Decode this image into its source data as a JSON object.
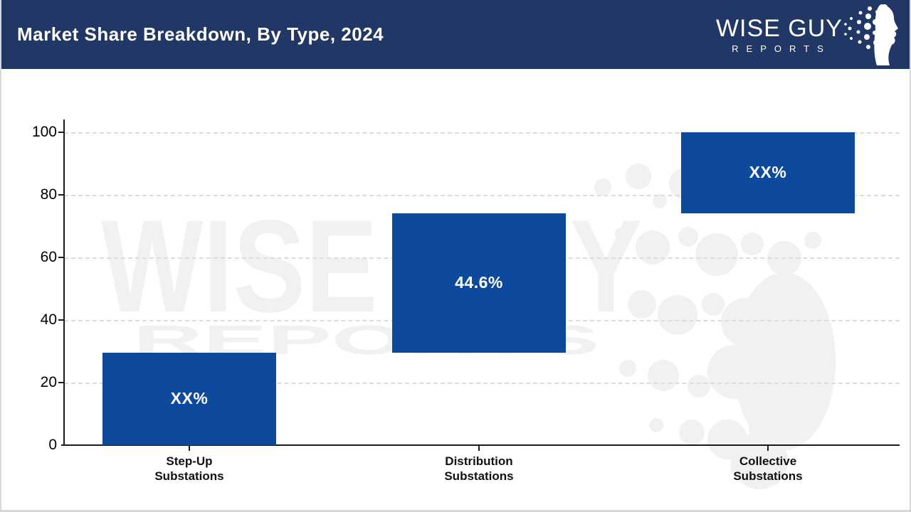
{
  "header": {
    "title": "Market Share Breakdown, By Type, 2024",
    "logo": {
      "line1": "WISE GUY",
      "line2": "REPORTS"
    }
  },
  "watermark": {
    "line1": "WISE GUY",
    "line2": "R E P O R T S"
  },
  "colors": {
    "header_bg": "#213766",
    "bar": "#0d4a9e",
    "gridline": "#dcdcdc",
    "axis": "#1a1a1a",
    "watermark": "#f1f1f4",
    "bar_label_text": "#ffffff"
  },
  "chart_data": {
    "type": "bar",
    "subtype": "waterfall",
    "title": "Market Share Breakdown, By Type, 2024",
    "categories": [
      "Step-Up\nSubstations",
      "Distribution\nSubstations",
      "Collective\nSubstations"
    ],
    "segments": [
      {
        "category": "Step-Up Substations",
        "start": 0,
        "end": 29.6,
        "value_est": 29.6,
        "label": "XX%"
      },
      {
        "category": "Distribution Substations",
        "start": 29.6,
        "end": 74.2,
        "value_est": 44.6,
        "label": "44.6%"
      },
      {
        "category": "Collective Substations",
        "start": 74.2,
        "end": 100,
        "value_est": 25.8,
        "label": "XX%"
      }
    ],
    "yticks": [
      0,
      20,
      40,
      60,
      80,
      100
    ],
    "ylim": [
      0,
      100
    ],
    "xlabel": "",
    "ylabel": "",
    "grid": "horizontal-dashed",
    "legend": false
  }
}
